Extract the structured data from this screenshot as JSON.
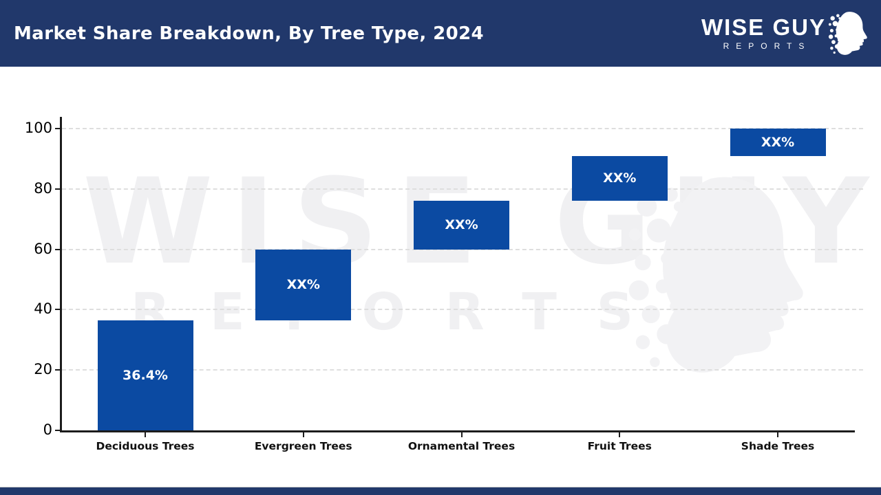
{
  "header": {
    "title": "Market Share Breakdown, By Tree Type, 2024",
    "logo": {
      "line1": "WISE GUY",
      "line2": "REPORTS"
    }
  },
  "watermark": {
    "line1": "WISE GUY",
    "line2": "REPORTS"
  },
  "colors": {
    "header_background": "#21386b",
    "bar_fill": "#0b4aa2",
    "bar_label": "#ffffff",
    "gridline": "#dedede",
    "axis": "#1c1c1c",
    "watermark": "#f0f0f2"
  },
  "chart_data": {
    "type": "bar",
    "subtype": "waterfall",
    "title": "Market Share Breakdown, By Tree Type, 2024",
    "categories": [
      "Deciduous Trees",
      "Evergreen Trees",
      "Ornamental Trees",
      "Fruit Trees",
      "Shade Trees"
    ],
    "bars": [
      {
        "category": "Deciduous Trees",
        "start": 0,
        "end": 36.4,
        "label": "36.4%"
      },
      {
        "category": "Evergreen Trees",
        "start": 36.4,
        "end": 60,
        "label": "XX%"
      },
      {
        "category": "Ornamental Trees",
        "start": 60,
        "end": 76,
        "label": "XX%"
      },
      {
        "category": "Fruit Trees",
        "start": 76,
        "end": 91,
        "label": "XX%"
      },
      {
        "category": "Shade Trees",
        "start": 91,
        "end": 100,
        "label": "XX%"
      }
    ],
    "xlabel": "",
    "ylabel": "",
    "ylim": [
      0,
      100
    ],
    "yticks": [
      0,
      20,
      40,
      60,
      80,
      100
    ],
    "grid": "horizontal dashed",
    "legend": "none",
    "bar_color": "#0b4aa2",
    "bar_label_color": "#ffffff"
  }
}
